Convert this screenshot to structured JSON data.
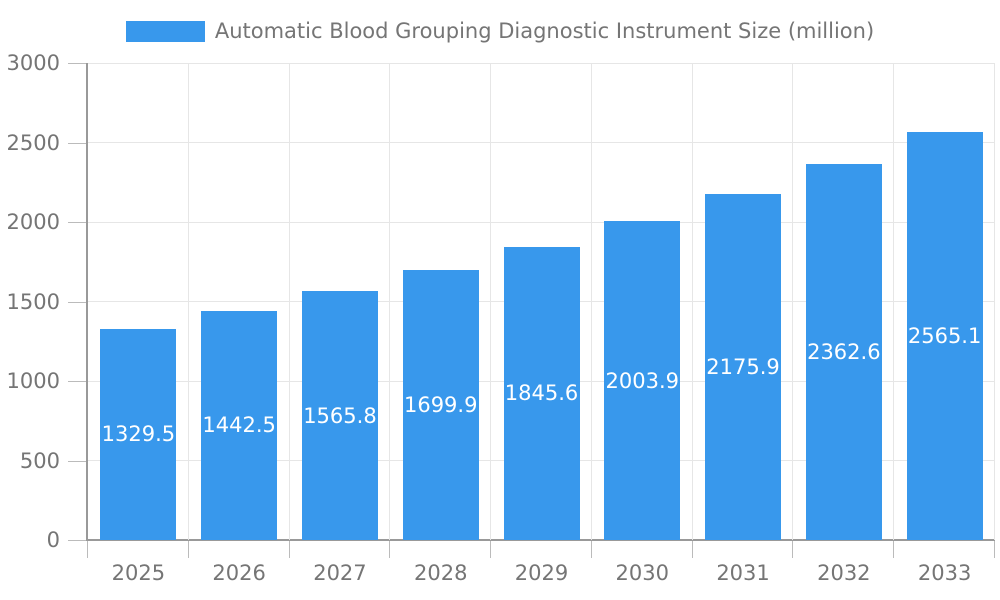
{
  "chart_data": {
    "type": "bar",
    "title": "Automatic Blood Grouping Diagnostic Instrument Size (million)",
    "categories": [
      "2025",
      "2026",
      "2027",
      "2028",
      "2029",
      "2030",
      "2031",
      "2032",
      "2033"
    ],
    "values": [
      1329.5,
      1442.5,
      1565.8,
      1699.9,
      1845.6,
      2003.9,
      2175.9,
      2362.6,
      2565.1
    ],
    "value_labels": [
      "1329.5",
      "1442.5",
      "1565.8",
      "1699.9",
      "1845.6",
      "2003.9",
      "2175.9",
      "2362.6",
      "2565.1"
    ],
    "xlabel": "",
    "ylabel": "",
    "ylim": [
      0,
      3000
    ],
    "yticks": [
      0,
      500,
      1000,
      1500,
      2000,
      2500,
      3000
    ],
    "ytick_labels": [
      "0",
      "500",
      "1000",
      "1500",
      "2000",
      "2500",
      "3000"
    ],
    "grid": true,
    "legend_position": "top-center"
  },
  "colors": {
    "bar": "#3898EC",
    "axis": "#999999",
    "tick": "#BBBBBB",
    "grid": "#E6E6E6",
    "text": "#757575",
    "value_label": "#FFFFFF",
    "background": "#FFFFFF"
  }
}
